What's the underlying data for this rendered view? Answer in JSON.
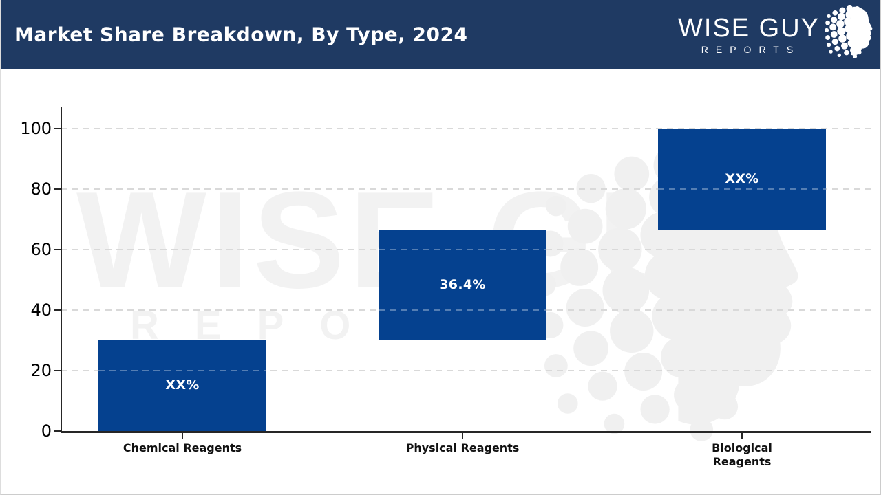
{
  "header": {
    "title": "Market Share Breakdown, By Type, 2024",
    "logo": {
      "line1": "WISE GUY",
      "line2": "REPORTS"
    }
  },
  "watermark": {
    "line1": "WISE GUY",
    "line2": "REPORTS"
  },
  "chart_data": {
    "type": "bar",
    "variant": "floating-waterfall",
    "title": "Market Share Breakdown, By Type, 2024",
    "categories": [
      "Chemical Reagents",
      "Physical Reagents",
      "Biological Reagents"
    ],
    "series": [
      {
        "name": "Market Share",
        "segments": [
          {
            "category": "Chemical Reagents",
            "start": 0,
            "end": 30.3,
            "height": 30.3,
            "label": "XX%"
          },
          {
            "category": "Physical Reagents",
            "start": 30.3,
            "end": 66.7,
            "height": 36.4,
            "label": "36.4%"
          },
          {
            "category": "Biological Reagents",
            "start": 66.7,
            "end": 100,
            "height": 33.3,
            "label": "XX%"
          }
        ]
      }
    ],
    "xlabel": "",
    "ylabel": "",
    "ylim": [
      0,
      100
    ],
    "yticks": [
      0,
      20,
      40,
      60,
      80,
      100
    ],
    "grid": {
      "axis": "y",
      "style": "dashed"
    },
    "legend": null
  },
  "colors": {
    "header-bg": "#1F3A63",
    "bar-blue": "#05418F",
    "grid": "#D9D9D9",
    "axis": "#262626",
    "watermark": "#F2F2F2",
    "watermark-face": "#F0F0F0"
  }
}
